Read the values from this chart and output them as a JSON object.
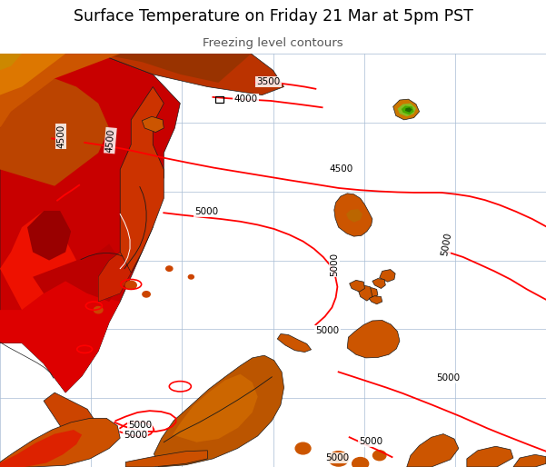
{
  "title": "Surface Temperature on Friday 21 Mar at 5pm PST",
  "subtitle": "Freezing level contours",
  "title_fontsize": 12.5,
  "subtitle_fontsize": 9.5,
  "fig_width": 6.01,
  "fig_height": 5.14,
  "dpi": 100,
  "ocean_color": "#b4c8e0",
  "grid_color": "#a8bcd4",
  "title_bg": "#ffffff",
  "border_lw": 0.5,
  "contour_color": "#ff0000",
  "contour_lw": 1.3
}
